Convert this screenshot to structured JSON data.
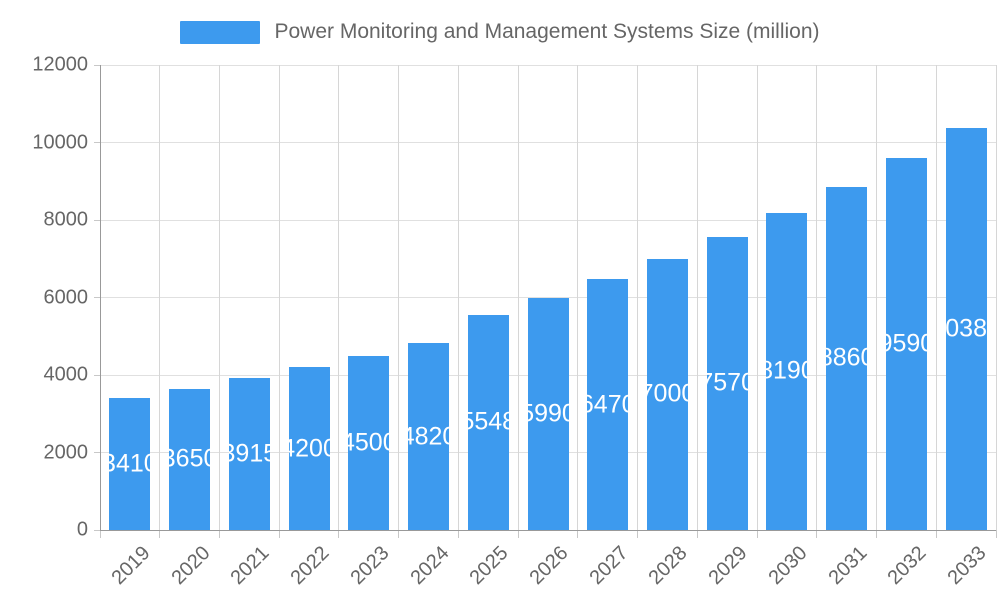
{
  "legend": {
    "label": "Power Monitoring and Management Systems Size (million)"
  },
  "chart_data": {
    "type": "bar",
    "title": "Power Monitoring and Management Systems Size (million)",
    "categories": [
      "2019",
      "2020",
      "2021",
      "2022",
      "2023",
      "2024",
      "2025",
      "2026",
      "2027",
      "2028",
      "2029",
      "2030",
      "2031",
      "2032",
      "2033"
    ],
    "series": [
      {
        "name": "Power Monitoring and Management Systems Size (million)",
        "values": [
          3410,
          3650,
          3915,
          4200,
          4500,
          4820,
          5548,
          5990,
          6470,
          7000,
          7570,
          8190,
          8860,
          9590,
          10380
        ]
      }
    ],
    "xlabel": "",
    "ylabel": "",
    "ylim": [
      0,
      12000
    ],
    "yticks": [
      0,
      2000,
      4000,
      6000,
      8000,
      10000,
      12000
    ],
    "grid": true,
    "legend_position": "top",
    "bar_labels_visible": true,
    "colors": {
      "bar_fill": "#3D9AEE",
      "bar_label_text": "#ffffff",
      "axis_text": "#666666",
      "grid_line": "#e0e0e0",
      "vgrid_line": "#d6d6d6",
      "axis_line": "#999999",
      "tick_line": "#c8c8c8",
      "background": "#ffffff"
    }
  }
}
